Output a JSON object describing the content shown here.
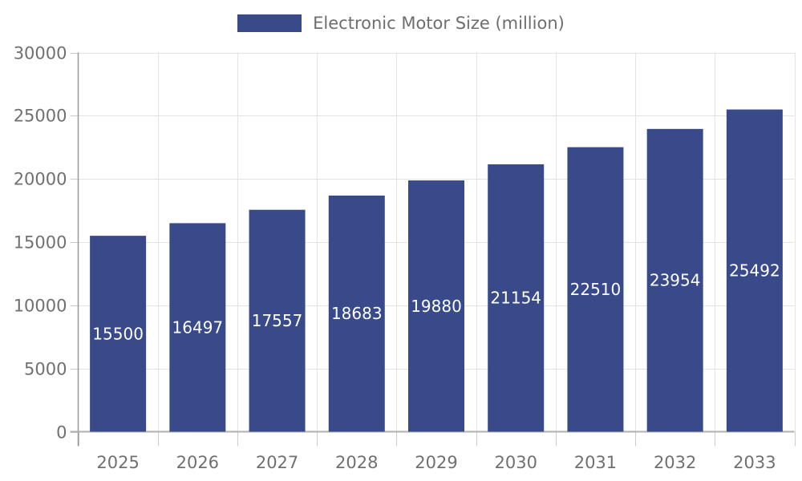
{
  "chart_data": {
    "type": "bar",
    "title": "Electronic Motor Size (million)",
    "categories": [
      "2025",
      "2026",
      "2027",
      "2028",
      "2029",
      "2030",
      "2031",
      "2032",
      "2033"
    ],
    "values": [
      15500,
      16497,
      17557,
      18683,
      19880,
      21154,
      22510,
      23954,
      25492
    ],
    "series": [
      {
        "name": "Electronic Motor Size (million)",
        "values": [
          15500,
          16497,
          17557,
          18683,
          19880,
          21154,
          22510,
          23954,
          25492
        ]
      }
    ],
    "xlabel": "",
    "ylabel": "",
    "ylim": [
      0,
      30000
    ],
    "yticks": [
      0,
      5000,
      10000,
      15000,
      20000,
      25000,
      30000
    ],
    "grid": true,
    "legend_position": "top",
    "bar_label_position": "inside-center",
    "colors": {
      "bar": "#394A8A",
      "bar_label": "#ffffff",
      "axis_text": "#707070",
      "grid_line": "#e3e3e3",
      "axis_line": "#999999",
      "baseline": "#b0b0b0",
      "tick": "#cccccc",
      "legend_text": "#6e6e6e"
    }
  }
}
